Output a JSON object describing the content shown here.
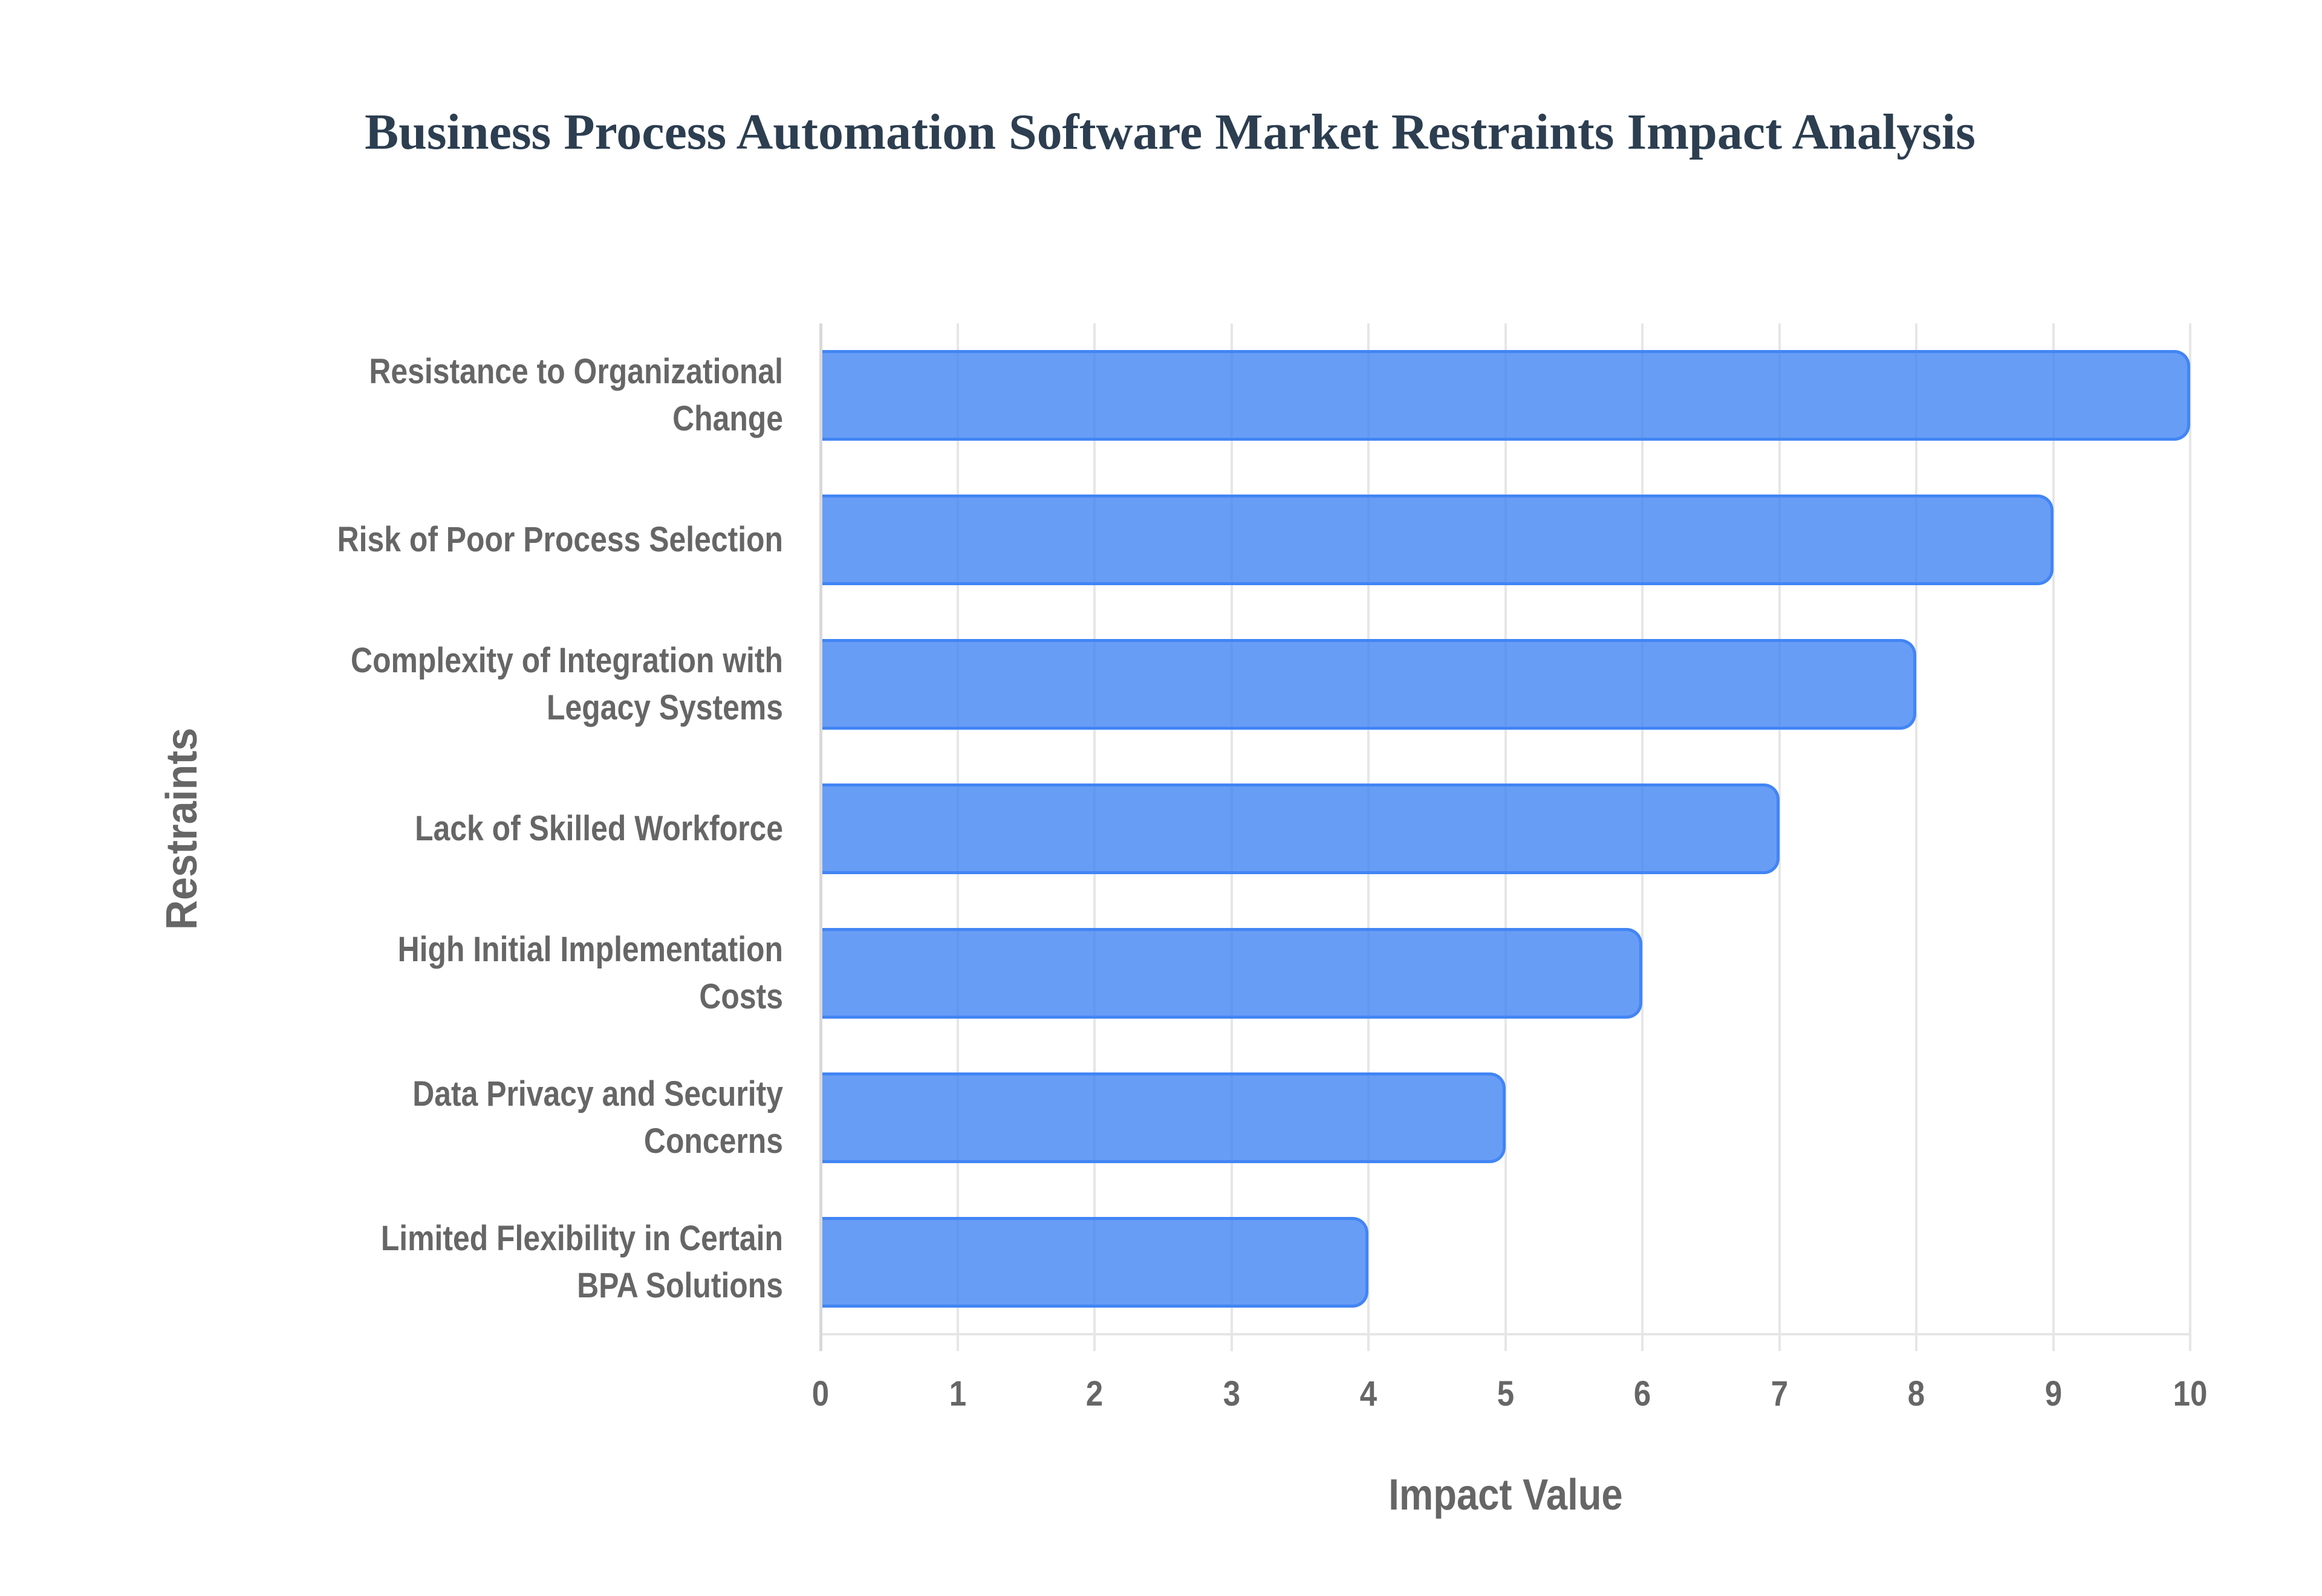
{
  "title": "Business Process Automation Software Market Restraints Impact Analysis",
  "colors": {
    "bar_fill": "rgba(66,133,244,0.8)",
    "bar_border": "#4285f4",
    "title": "#2c3e50",
    "axis_text": "#666666",
    "grid": "#e6e6e6"
  },
  "axes": {
    "x_title": "Impact Value",
    "y_title": "Restraints",
    "x_ticks": [
      "0",
      "1",
      "2",
      "3",
      "4",
      "5",
      "6",
      "7",
      "8",
      "9",
      "10"
    ]
  },
  "categories": [
    {
      "lines": [
        "Resistance to Organizational",
        "Change"
      ],
      "value": 10
    },
    {
      "lines": [
        "Risk of Poor Process Selection"
      ],
      "value": 9
    },
    {
      "lines": [
        "Complexity of Integration with",
        "Legacy Systems"
      ],
      "value": 8
    },
    {
      "lines": [
        "Lack of Skilled Workforce"
      ],
      "value": 7
    },
    {
      "lines": [
        "High Initial Implementation",
        "Costs"
      ],
      "value": 6
    },
    {
      "lines": [
        "Data Privacy and Security",
        "Concerns"
      ],
      "value": 5
    },
    {
      "lines": [
        "Limited Flexibility in Certain",
        "BPA Solutions"
      ],
      "value": 4
    }
  ],
  "chart_data": {
    "type": "bar",
    "orientation": "horizontal",
    "title": "Business Process Automation Software Market Restraints Impact Analysis",
    "categories": [
      "Resistance to Organizational Change",
      "Risk of Poor Process Selection",
      "Complexity of Integration with Legacy Systems",
      "Lack of Skilled Workforce",
      "High Initial Implementation Costs",
      "Data Privacy and Security Concerns",
      "Limited Flexibility in Certain BPA Solutions"
    ],
    "values": [
      10,
      9,
      8,
      7,
      6,
      5,
      4
    ],
    "xlabel": "Impact Value",
    "ylabel": "Restraints",
    "xlim": [
      0,
      10
    ],
    "x_ticks": [
      0,
      1,
      2,
      3,
      4,
      5,
      6,
      7,
      8,
      9,
      10
    ],
    "grid": true,
    "legend": "none"
  }
}
